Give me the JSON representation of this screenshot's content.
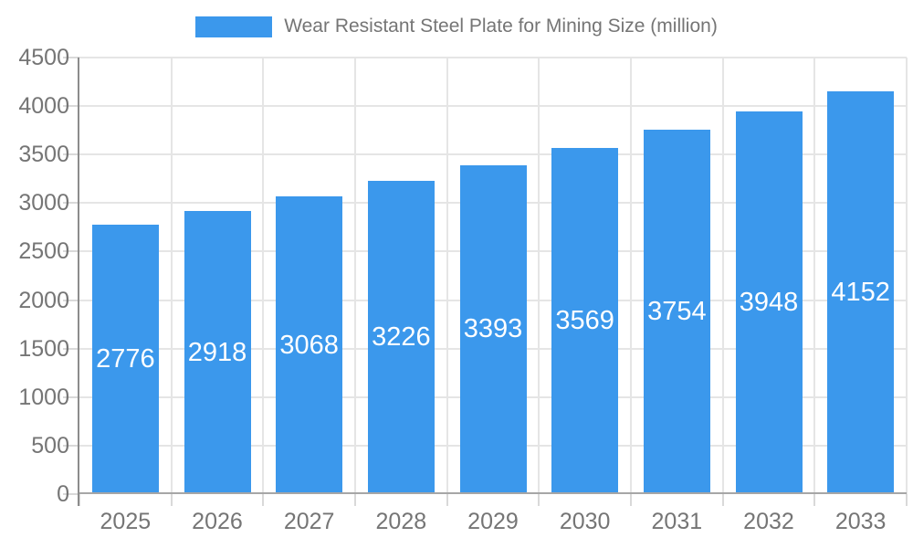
{
  "chart_data": {
    "type": "bar",
    "title": "Wear Resistant Steel Plate for Mining Size (million)",
    "categories": [
      "2025",
      "2026",
      "2027",
      "2028",
      "2029",
      "2030",
      "2031",
      "2032",
      "2033"
    ],
    "values": [
      2776,
      2918,
      3068,
      3226,
      3393,
      3569,
      3754,
      3948,
      4152
    ],
    "xlabel": "",
    "ylabel": "",
    "ylim": [
      0,
      4500
    ],
    "yticks": [
      0,
      500,
      1000,
      1500,
      2000,
      2500,
      3000,
      3500,
      4000,
      4500
    ],
    "grid": true,
    "legend_position": "top-center",
    "bar_color": "#3B98EC",
    "bar_label_color": "#FFFFFF",
    "axis_text_color": "#757575",
    "grid_color": "#E5E5E5"
  }
}
